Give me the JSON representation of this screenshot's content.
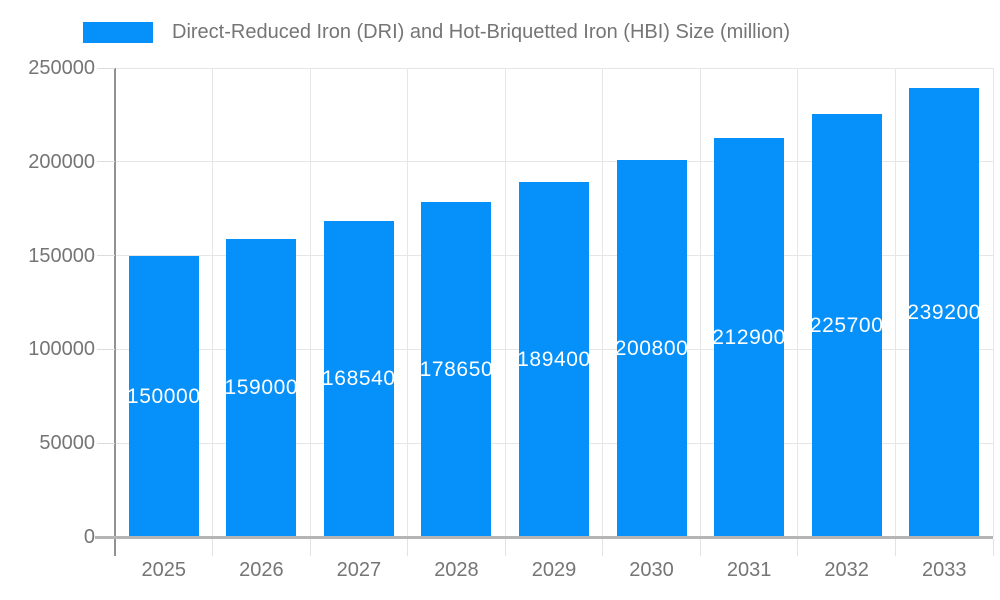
{
  "legend": {
    "label": "Direct-Reduced Iron (DRI) and Hot-Briquetted Iron (HBI) Size (million)",
    "position": "top-left"
  },
  "colors": {
    "bar": "#0690fa",
    "bar_label_text": "#ffffff",
    "axis_text": "#757575",
    "gridline": "#e6e6e6",
    "y_axis_line": "#919191",
    "x_axis_line": "#b5b5b5",
    "background": "#ffffff"
  },
  "chart_data": {
    "type": "bar",
    "title": "",
    "xlabel": "",
    "ylabel": "",
    "categories": [
      "2025",
      "2026",
      "2027",
      "2028",
      "2029",
      "2030",
      "2031",
      "2032",
      "2033"
    ],
    "series": [
      {
        "name": "Direct-Reduced Iron (DRI) and Hot-Briquetted Iron (HBI) Size (million)",
        "values": [
          150000,
          159000,
          168540,
          178650,
          189400,
          200800,
          212900,
          225700,
          239200
        ]
      }
    ],
    "bar_labels": [
      "150000",
      "159000",
      "168540",
      "178650",
      "189400",
      "200800",
      "212900",
      "225700",
      "239200"
    ],
    "ylim": [
      0,
      250000
    ],
    "ytick_step": 50000,
    "ytick_labels": [
      "0",
      "50000",
      "100000",
      "150000",
      "200000",
      "250000"
    ],
    "grid": true,
    "legend_position": "top"
  }
}
